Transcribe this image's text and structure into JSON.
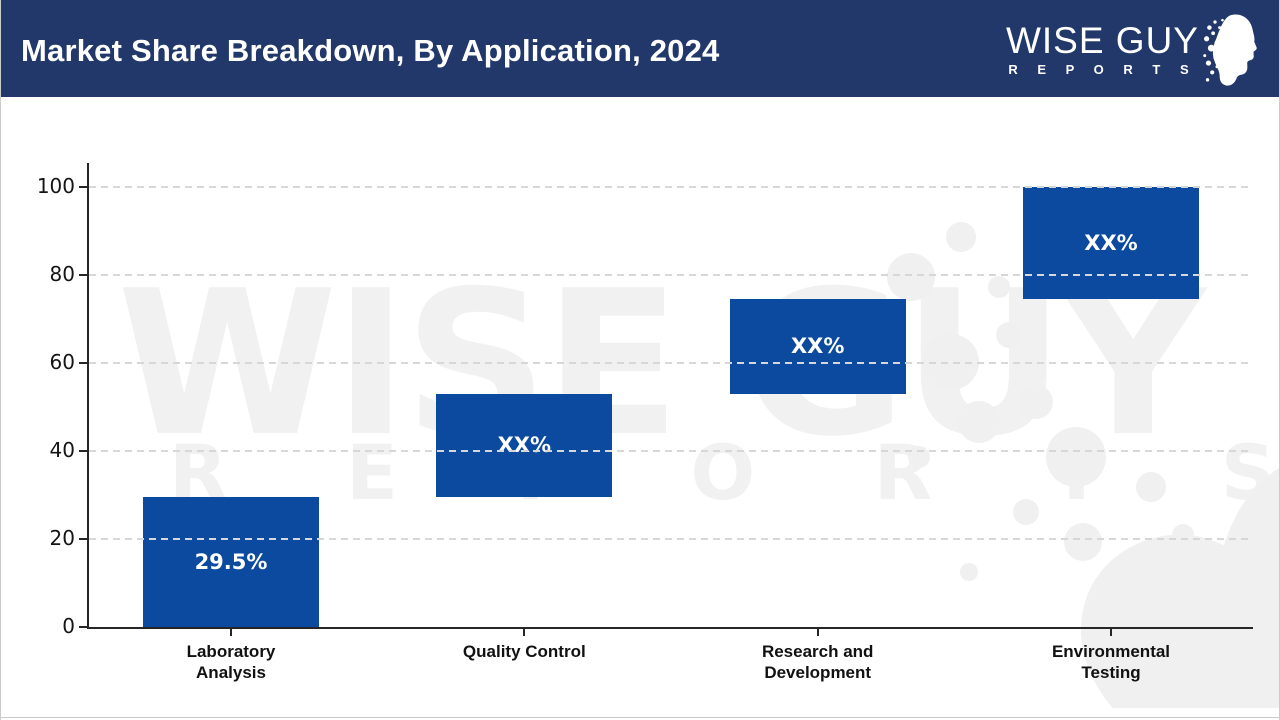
{
  "header": {
    "title": "Market Share Breakdown, By Application, 2024",
    "bg_color": "#22386a",
    "logo": {
      "name": "WISE GUY",
      "sub": "R E P O R T S",
      "icon": "head-profile-dots-icon"
    }
  },
  "watermark": {
    "line1": "WISE GUY",
    "line2": "R E P O R T S",
    "color": "#f1f1f1"
  },
  "chart_data": {
    "type": "bar",
    "subtype": "waterfall",
    "title": "Market Share Breakdown, By Application, 2024",
    "categories": [
      "Laboratory Analysis",
      "Quality Control",
      "Research and Development",
      "Environmental Testing"
    ],
    "category_lines": [
      [
        "Laboratory",
        "Analysis"
      ],
      [
        "Quality Control"
      ],
      [
        "Research and",
        "Development"
      ],
      [
        "Environmental",
        "Testing"
      ]
    ],
    "segments": [
      {
        "category": "Laboratory Analysis",
        "start": 0,
        "end": 29.5,
        "value": 29.5,
        "label": "29.5%"
      },
      {
        "category": "Quality Control",
        "start": 29.5,
        "end": 53,
        "value": 23.5,
        "label": "XX%"
      },
      {
        "category": "Research and Development",
        "start": 53,
        "end": 74.5,
        "value": 21.5,
        "label": "XX%"
      },
      {
        "category": "Environmental Testing",
        "start": 74.5,
        "end": 100,
        "value": 25.5,
        "label": "XX%"
      }
    ],
    "ylim": [
      0,
      100
    ],
    "yticks": [
      0,
      20,
      40,
      60,
      80,
      100
    ],
    "grid": "horizontal-dashed",
    "legend": "none",
    "bar_color": "#0b4a9e",
    "bar_label_color": "#ffffff",
    "axis_color": "#262626",
    "gridline_color": "#d7d7d7"
  }
}
